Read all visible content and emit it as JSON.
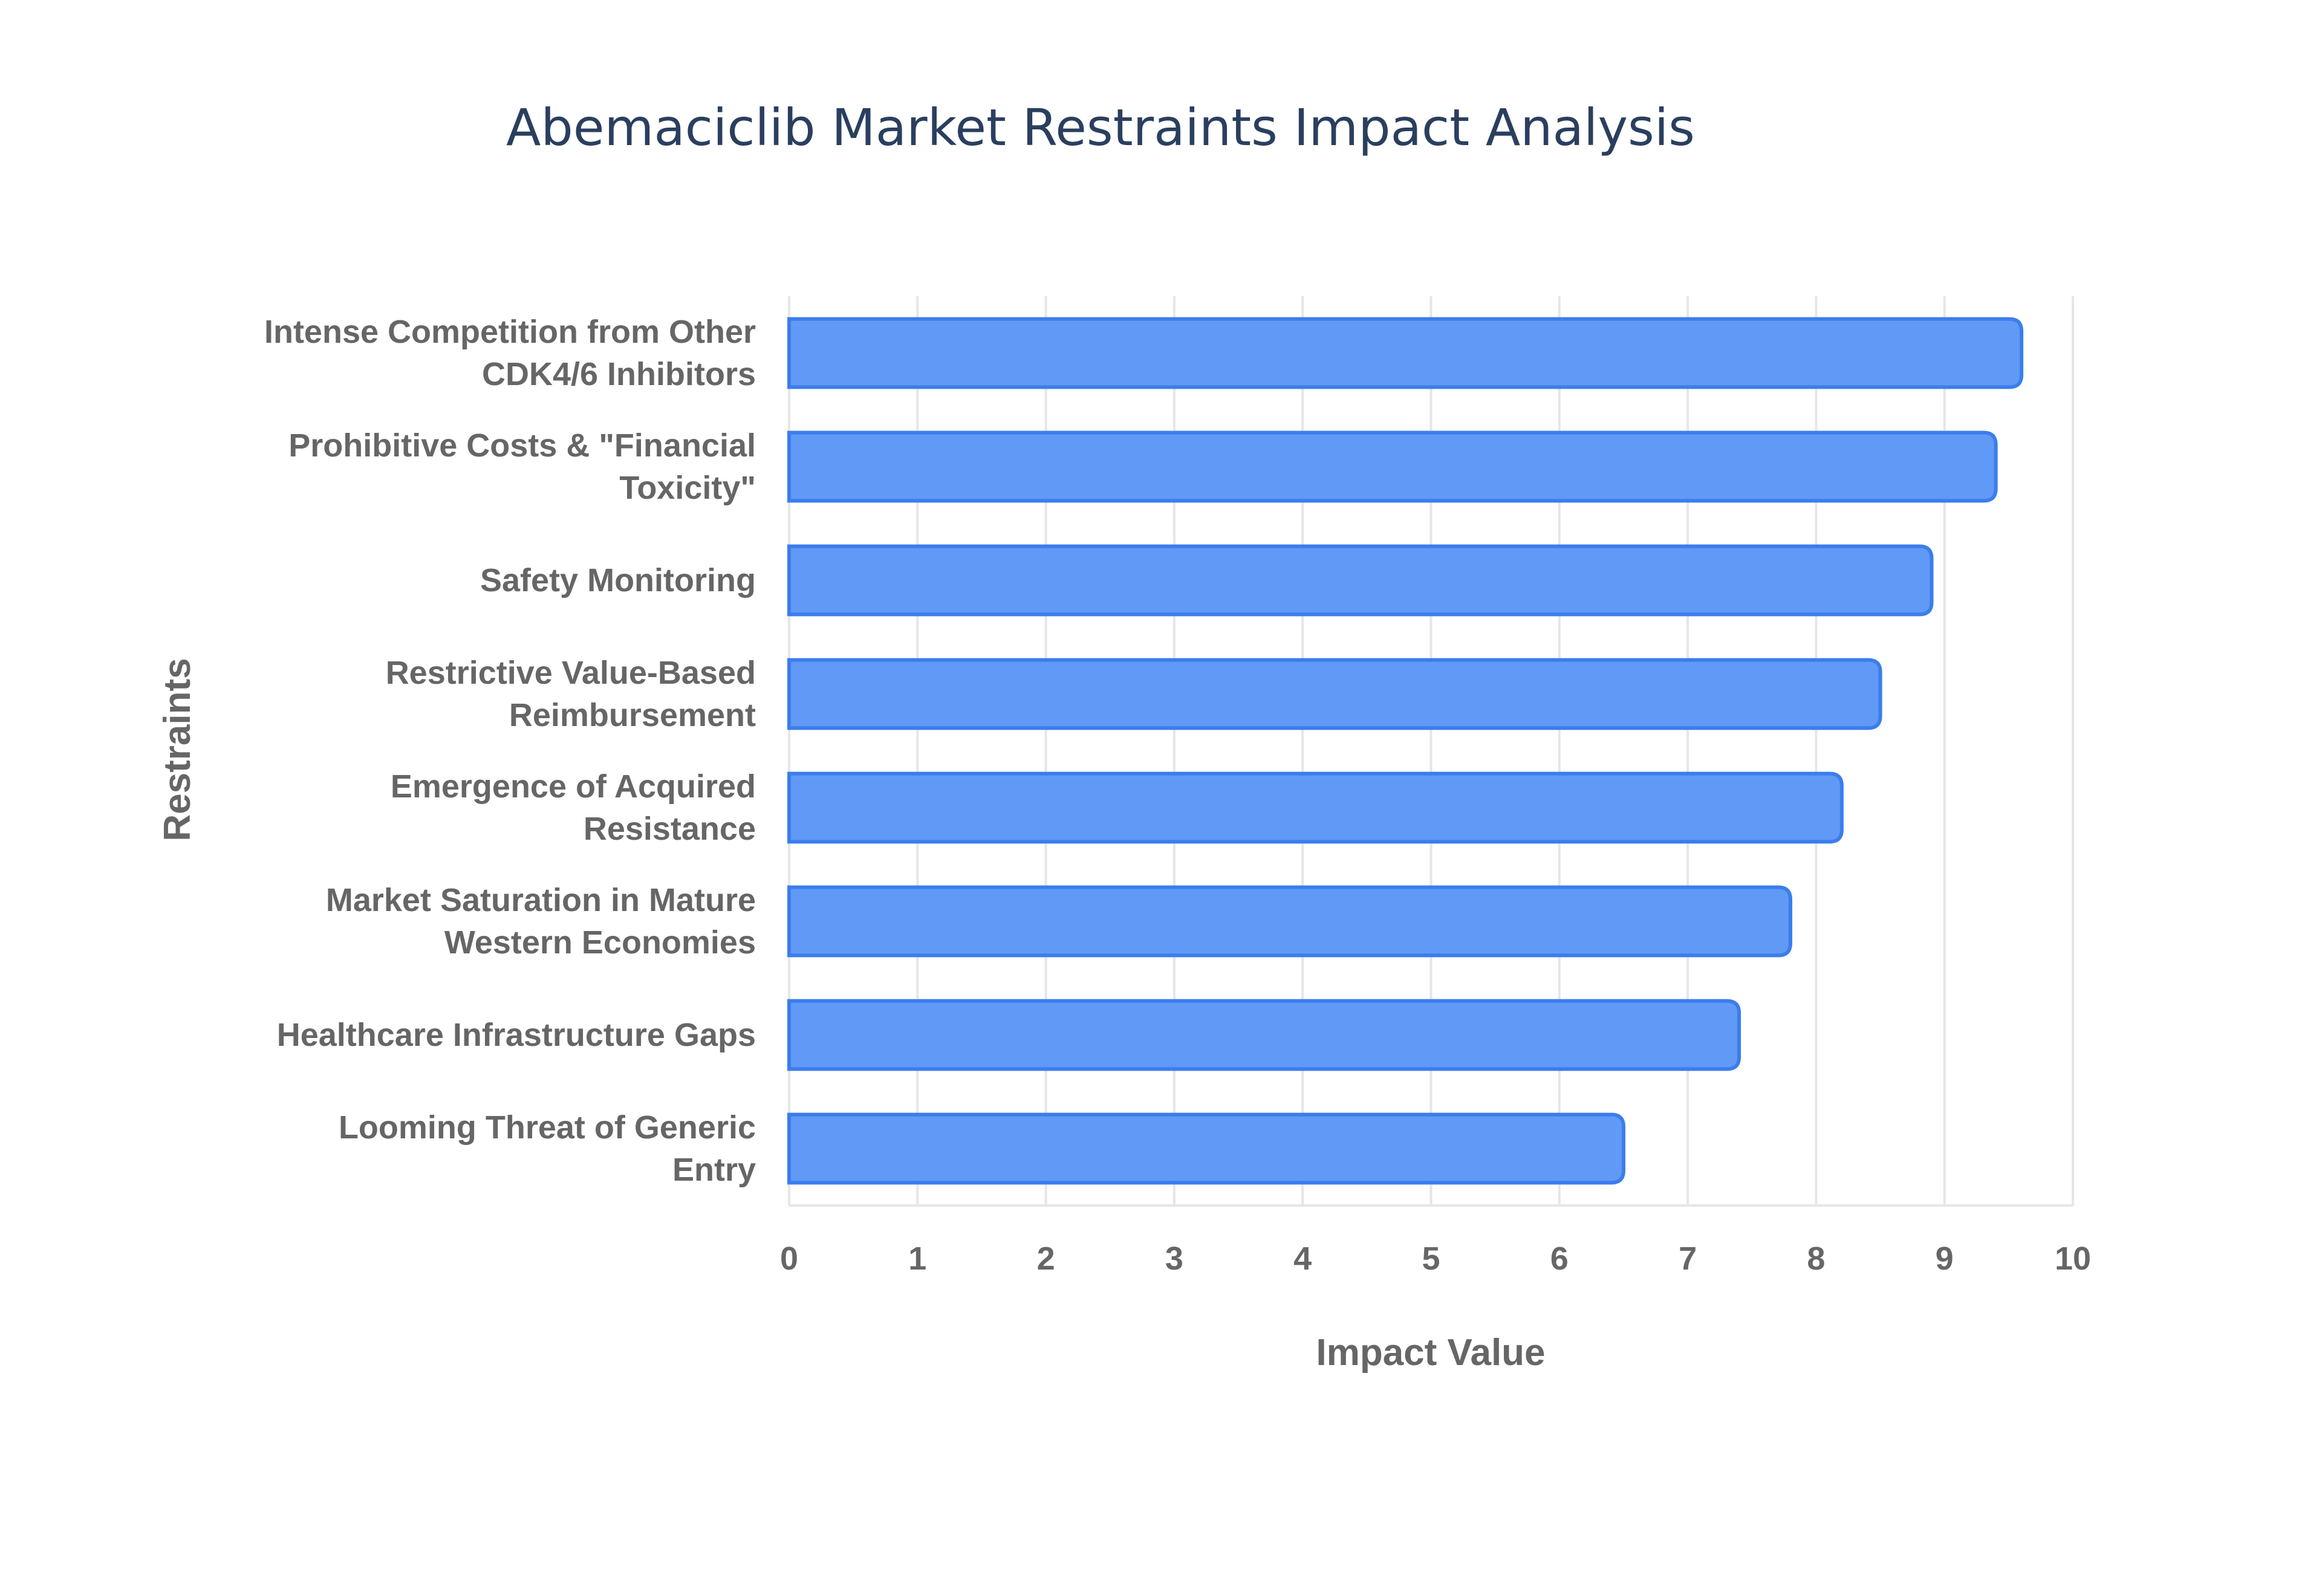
{
  "chart_data": {
    "type": "bar",
    "orientation": "horizontal",
    "title": "Abemaciclib Market Restraints Impact Analysis",
    "xlabel": "Impact Value",
    "ylabel": "Restraints",
    "xlim": [
      0,
      10
    ],
    "xticks": [
      0,
      1,
      2,
      3,
      4,
      5,
      6,
      7,
      8,
      9,
      10
    ],
    "grid": true,
    "categories": [
      [
        "Intense Competition from Other",
        "CDK4/6 Inhibitors"
      ],
      [
        "Prohibitive Costs & \"Financial",
        "Toxicity\""
      ],
      [
        "Safety Monitoring"
      ],
      [
        "Restrictive Value-Based",
        "Reimbursement"
      ],
      [
        "Emergence of Acquired",
        "Resistance"
      ],
      [
        "Market Saturation in Mature",
        "Western Economies"
      ],
      [
        "Healthcare Infrastructure Gaps"
      ],
      [
        "Looming Threat of Generic",
        "Entry"
      ]
    ],
    "values": [
      9.6,
      9.4,
      8.9,
      8.5,
      8.2,
      7.8,
      7.4,
      6.5
    ],
    "colors": {
      "bar_fill": "#6199f6",
      "bar_stroke": "#3b7ded",
      "grid": "#e6e6e6",
      "text": "#666666",
      "title": "#2a3f5f"
    }
  }
}
